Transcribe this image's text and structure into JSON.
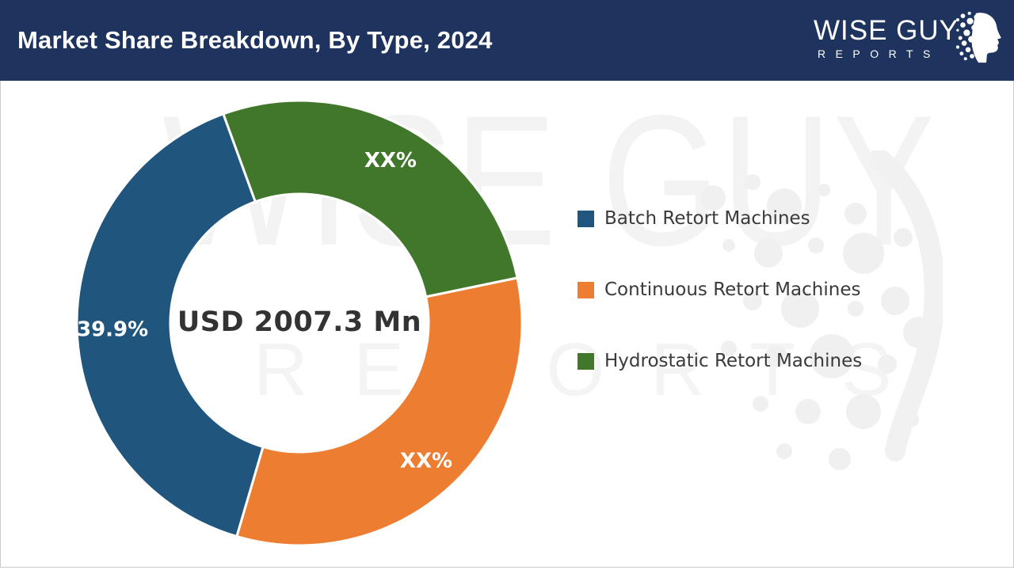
{
  "header": {
    "title": "Market Share Breakdown, By Type, 2024",
    "bg_color": "#1E345E",
    "logo": {
      "line1": "WISE GUY",
      "line2": "REPORTS"
    }
  },
  "watermark": {
    "line1": "WISE GUY",
    "line2": "REPORTS"
  },
  "chart_data": {
    "type": "pie",
    "subtype": "donut",
    "title": "Market Share Breakdown, By Type, 2024",
    "center_label": "USD 2007.3 Mn",
    "donut_hole_ratio": 0.58,
    "start_angle_deg": 110,
    "direction": "counterclockwise",
    "legend_position": "right",
    "segments": [
      {
        "label": "Batch Retort Machines",
        "value_pct": 39.9,
        "display_label": "39.9%",
        "color": "#20567E"
      },
      {
        "label": "Continuous Retort Machines",
        "value_pct": 32.8,
        "display_label": "XX%",
        "color": "#ED7D31"
      },
      {
        "label": "Hydrostatic Retort Machines",
        "value_pct": 27.3,
        "display_label": "XX%",
        "color": "#41772B"
      }
    ]
  },
  "colors": {
    "header_bg": "#1E345E",
    "blue": "#20567E",
    "orange": "#ED7D31",
    "green": "#41772B",
    "text_dark": "#333333",
    "watermark": "#f3f3f3",
    "edge_border": "#cccccc"
  }
}
